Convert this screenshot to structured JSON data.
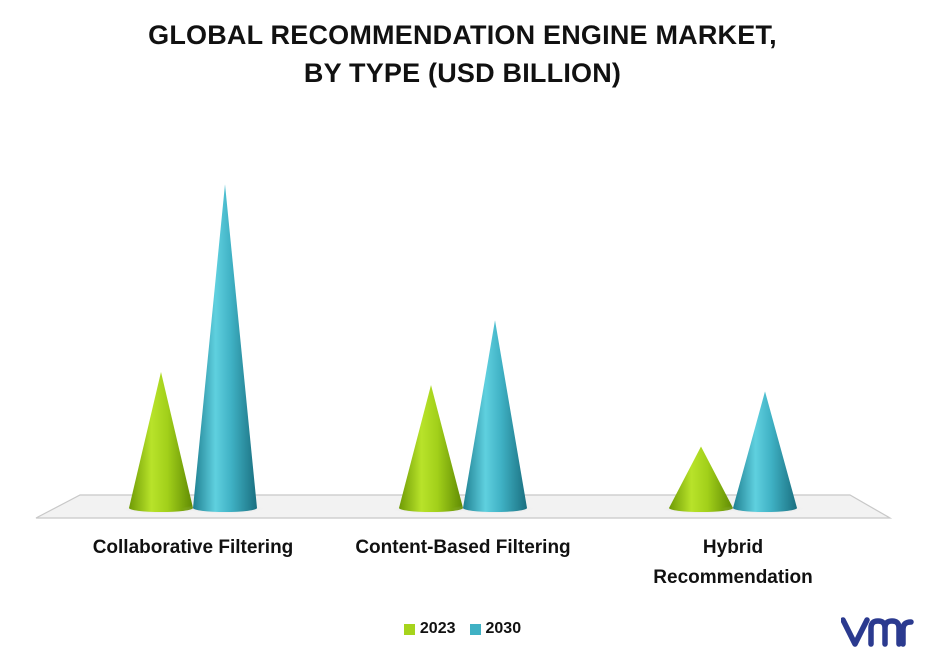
{
  "chart_data": {
    "type": "bar",
    "title_lines": [
      "GLOBAL RECOMMENDATION ENGINE MARKET,",
      "BY TYPE (USD BILLION)"
    ],
    "categories": [
      "Collaborative Filtering",
      "Content-Based Filtering",
      "Hybrid\nRecommendation"
    ],
    "series": [
      {
        "name": "2023",
        "values": [
          4.2,
          3.8,
          1.9
        ],
        "color": "#a6d41c"
      },
      {
        "name": "2030",
        "values": [
          10.0,
          5.8,
          3.6
        ],
        "color": "#3fb1c4"
      }
    ],
    "ylim": [
      0,
      10.5
    ],
    "grid": false,
    "legend_position": "bottom",
    "mark_shape": "cone"
  },
  "logo": {
    "text": "vmr",
    "icon": "vmr-logo-icon",
    "color": "#2b3a8f"
  }
}
